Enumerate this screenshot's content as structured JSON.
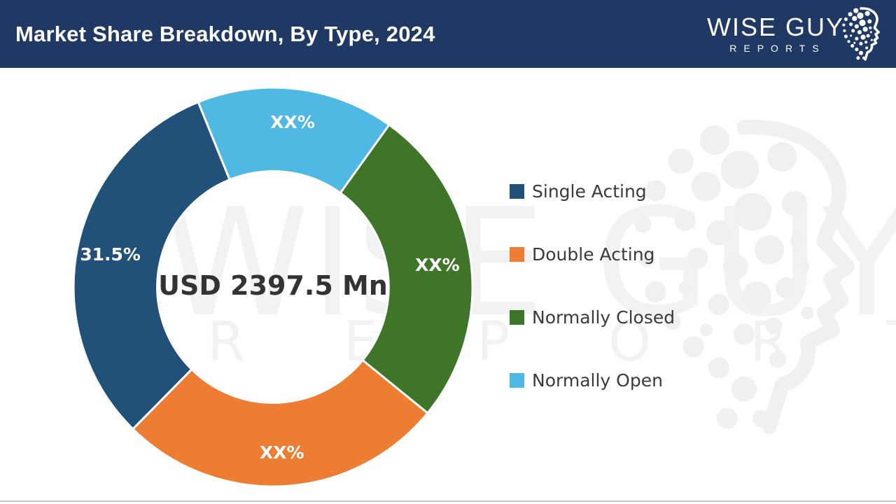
{
  "header": {
    "title": "Market Share Breakdown, By Type, 2024",
    "background_color": "#1f3864",
    "logo": {
      "line1": "WISE GUY",
      "line2": "REPORTS"
    }
  },
  "watermark": {
    "line1": "WISE GUY",
    "line2": "R E P O R T S"
  },
  "chart_data": {
    "type": "pie",
    "subtype": "donut",
    "title": "Market Share Breakdown, By Type, 2024",
    "center_text": "USD 2397.5 Mn",
    "start_angle_deg": 112,
    "direction": "counterclockwise",
    "inner_radius_ratio": 0.58,
    "legend_position": "right",
    "slice_gap_color": "#ffffff",
    "segments": [
      {
        "label": "Single Acting",
        "value": 31.5,
        "display_value": "31.5%",
        "color": "#215078"
      },
      {
        "label": "Double Acting",
        "value": 26.5,
        "display_value": "XX%",
        "color": "#ec7d32"
      },
      {
        "label": "Normally Closed",
        "value": 26.0,
        "display_value": "XX%",
        "color": "#3e7529"
      },
      {
        "label": "Normally Open",
        "value": 16.0,
        "display_value": "XX%",
        "color": "#4fb8e3"
      }
    ]
  }
}
